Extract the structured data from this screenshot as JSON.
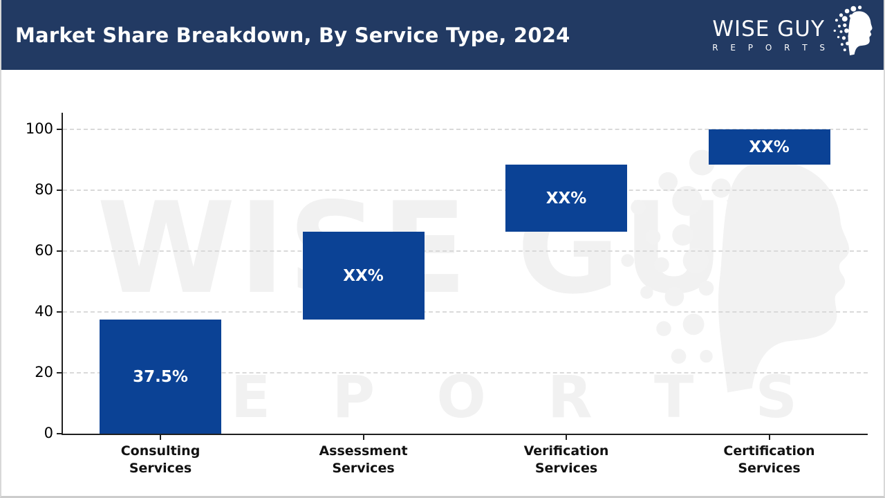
{
  "header": {
    "title": "Market Share Breakdown, By Service Type, 2024",
    "logo": {
      "line1": "WISE GUY",
      "line2": "R E P O R T S"
    }
  },
  "watermark": {
    "line1": "WISE GUY",
    "line2": "REPORTS"
  },
  "colors": {
    "header_bg": "#223a63",
    "bar": "#0b4295",
    "axis": "#1f1f1f",
    "grid": "#d9d9d9",
    "watermark": "#f1f1f1",
    "bar_label": "#ffffff"
  },
  "chart_data": {
    "type": "bar",
    "subtype": "waterfall",
    "title": "Market Share Breakdown, By Service Type, 2024",
    "xlabel": "",
    "ylabel": "",
    "ylim": [
      0,
      100
    ],
    "yticks": [
      0,
      20,
      40,
      60,
      80,
      100
    ],
    "grid": "horizontal-dashed",
    "legend": "none",
    "categories": [
      [
        "Consulting",
        "Services"
      ],
      [
        "Assessment",
        "Services"
      ],
      [
        "Verification",
        "Services"
      ],
      [
        "Certification",
        "Services"
      ]
    ],
    "segments": [
      {
        "category": "Consulting Services",
        "start": 0,
        "end": 37.5,
        "value": 37.5,
        "label": "37.5%"
      },
      {
        "category": "Assessment Services",
        "start": 37.5,
        "end": 66.3,
        "value": 28.8,
        "label": "XX%"
      },
      {
        "category": "Verification Services",
        "start": 66.3,
        "end": 88.4,
        "value": 22.1,
        "label": "XX%"
      },
      {
        "category": "Certification Services",
        "start": 88.4,
        "end": 100,
        "value": 11.6,
        "label": "XX%"
      }
    ]
  }
}
